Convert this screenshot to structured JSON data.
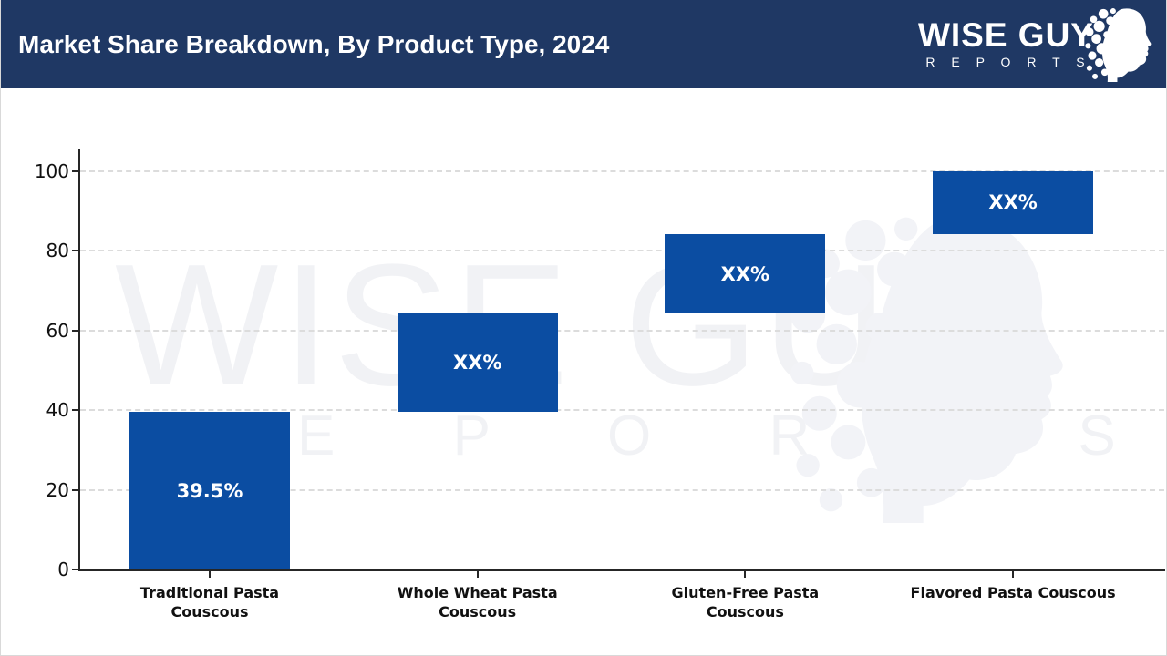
{
  "header": {
    "title": "Market Share Breakdown, By Product Type, 2024",
    "logo": {
      "line1": "WISE GUY",
      "line2": "R E P O R T S"
    }
  },
  "watermark": {
    "line1": "WISE GUY",
    "line2": "R E P O R T S"
  },
  "colors": {
    "header_bg": "#1F3864",
    "bar": "#0B4DA2",
    "bar_label_text": "#ffffff",
    "grid": "#dcdcdc",
    "axis": "#262626",
    "watermark": "#f1f2f5"
  },
  "chart_data": {
    "type": "bar",
    "subtype": "waterfall",
    "title": "Market Share Breakdown, By Product Type, 2024",
    "categories": [
      "Traditional Pasta Couscous",
      "Whole Wheat Pasta Couscous",
      "Gluten-Free Pasta Couscous",
      "Flavored Pasta Couscous"
    ],
    "bars": [
      {
        "category": "Traditional Pasta Couscous",
        "start": 0,
        "end": 39.5,
        "label": "39.5%"
      },
      {
        "category": "Whole Wheat Pasta Couscous",
        "start": 39.5,
        "end": 64.2,
        "label": "XX%"
      },
      {
        "category": "Gluten-Free Pasta Couscous",
        "start": 64.2,
        "end": 84.1,
        "label": "XX%"
      },
      {
        "category": "Flavored Pasta Couscous",
        "start": 84.1,
        "end": 100,
        "label": "XX%"
      }
    ],
    "ylim": [
      0,
      100
    ],
    "yticks": [
      0,
      20,
      40,
      60,
      80,
      100
    ],
    "xlabel": "",
    "ylabel": "",
    "grid": "horizontal-dashed",
    "legend": "none",
    "bar_color": "#0B4DA2"
  }
}
